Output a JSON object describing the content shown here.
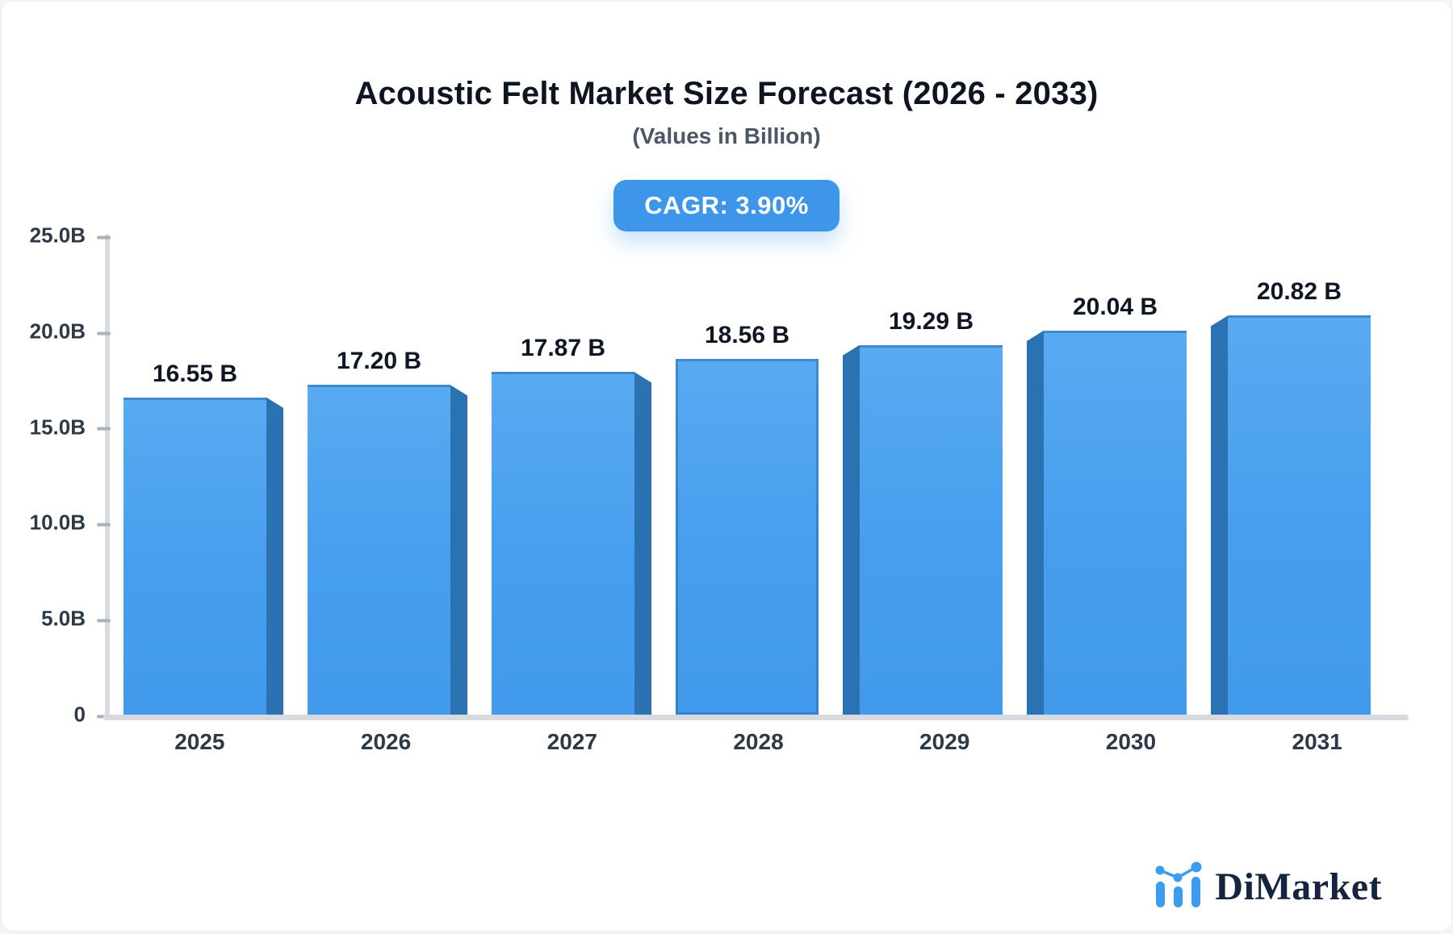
{
  "header": {
    "title": "Acoustic Felt Market Size Forecast (2026 - 2033)",
    "subtitle": "(Values in Billion)",
    "cagr_badge": "CAGR: 3.90%"
  },
  "chart_data": {
    "type": "bar",
    "title": "Acoustic Felt Market Size Forecast (2026 - 2033)",
    "subtitle": "(Values in Billion)",
    "cagr_percent": 3.9,
    "categories": [
      "2025",
      "2026",
      "2027",
      "2028",
      "2029",
      "2030",
      "2031"
    ],
    "values": [
      16.55,
      17.2,
      17.87,
      18.56,
      19.29,
      20.04,
      20.82
    ],
    "value_labels": [
      "16.55 B",
      "17.20 B",
      "17.87 B",
      "18.56 B",
      "19.29 B",
      "20.04 B",
      "20.82 B"
    ],
    "unit": "Billion",
    "xlabel": "",
    "ylabel": "",
    "ylim": [
      0,
      25
    ],
    "yticks": [
      {
        "value": 25,
        "label": "25.0B"
      },
      {
        "value": 20,
        "label": "20.0B"
      },
      {
        "value": 15,
        "label": "15.0B"
      },
      {
        "value": 10,
        "label": "10.0B"
      },
      {
        "value": 5,
        "label": "5.0B"
      },
      {
        "value": 0,
        "label": "0"
      }
    ],
    "grid": false,
    "legend": "none",
    "bar_style": "3d-beveled, center bar flat, left bars beveled right, right bars beveled left"
  },
  "colors": {
    "bar_fill": "#4aa0ed",
    "bar_fill_light": "#58aaf1",
    "bar_bevel": "#2b72b2",
    "badge_bg": "#3e96ea",
    "axis_line": "#d7dbe0",
    "tick_dash": "#a9b1bb",
    "axis_text": "#2c3947",
    "title_text": "#0d1520",
    "subtitle_text": "#4b5766",
    "logo_text": "#16243d",
    "logo_icon": "#3b9df0"
  },
  "footer": {
    "brand": "DiMarket"
  }
}
